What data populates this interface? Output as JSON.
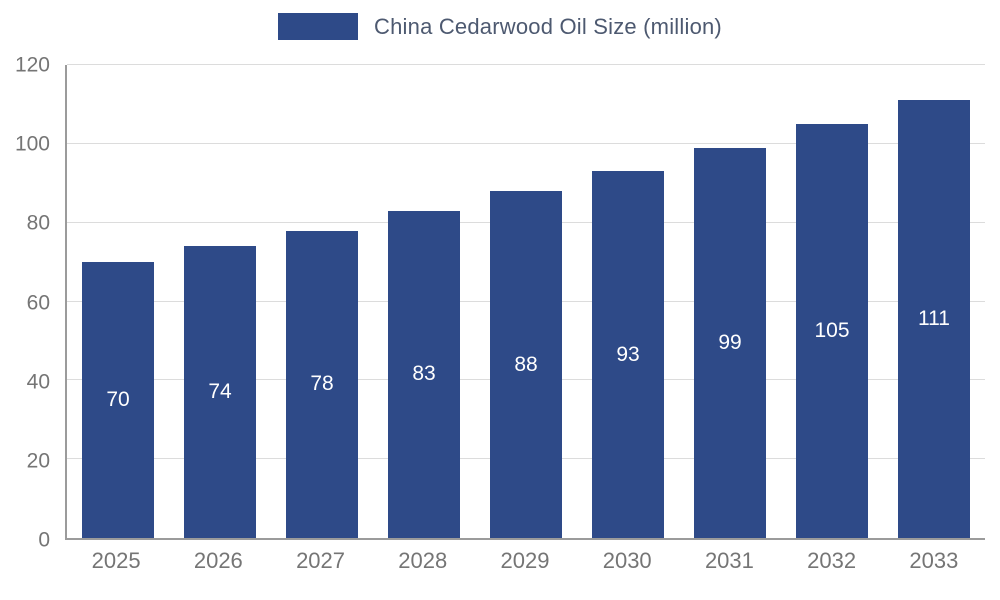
{
  "legend": {
    "label": "China Cedarwood Oil Size (million)"
  },
  "chart_data": {
    "type": "bar",
    "title": "China Cedarwood Oil Size (million)",
    "categories": [
      "2025",
      "2026",
      "2027",
      "2028",
      "2029",
      "2030",
      "2031",
      "2032",
      "2033"
    ],
    "values": [
      70,
      74,
      78,
      83,
      88,
      93,
      99,
      105,
      111
    ],
    "xlabel": "",
    "ylabel": "",
    "ylim": [
      0,
      120
    ],
    "yticks": [
      0,
      20,
      40,
      60,
      80,
      100,
      120
    ],
    "grid": true,
    "legend_position": "top",
    "bar_color": "#2e4a88",
    "value_label_color": "#ffffff",
    "axis_color": "#9b9b9b",
    "grid_color": "#dcdcdc",
    "tick_label_color": "#757575"
  }
}
